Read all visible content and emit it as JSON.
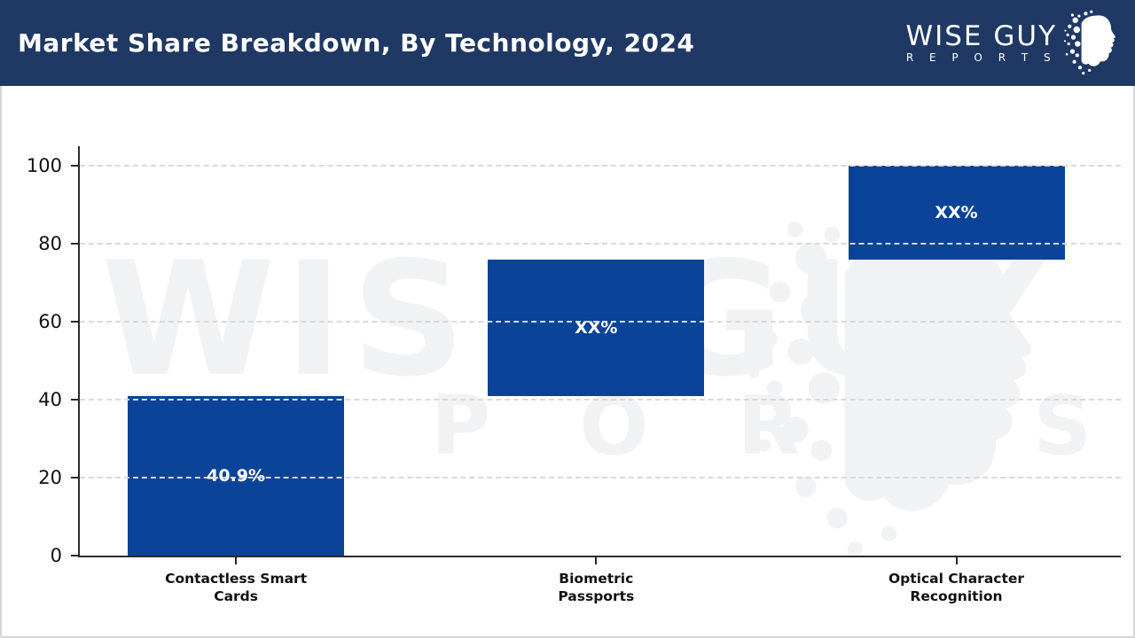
{
  "header": {
    "title": "Market Share Breakdown, By Technology, 2024",
    "logo": {
      "name": "WISE GUY",
      "sub": "R E P O R T S"
    }
  },
  "watermark": {
    "text_main": "WISE GUY",
    "text_sub": "R E P O R T S"
  },
  "chart_data": {
    "type": "bar",
    "subtype": "waterfall-stacked-segments",
    "title": "Market Share Breakdown, By Technology, 2024",
    "categories": [
      "Contactless Smart\nCards",
      "Biometric\nPassports",
      "Optical Character\nRecognition"
    ],
    "bars": [
      {
        "category": "Contactless Smart Cards",
        "start": 0,
        "end": 40.9,
        "label": "40.9%"
      },
      {
        "category": "Biometric Passports",
        "start": 40.9,
        "end": 75.9,
        "label": "XX%"
      },
      {
        "category": "Optical Character Recognition",
        "start": 75.9,
        "end": 100,
        "label": "XX%"
      }
    ],
    "ylim": [
      0,
      100
    ],
    "yticks": [
      0,
      20,
      40,
      60,
      80,
      100
    ],
    "xlabel": "",
    "ylabel": "",
    "grid": "horizontal-dashed",
    "legend": "none"
  },
  "colors": {
    "header_bg": "#1f3864",
    "bar": "#0a4398",
    "grid": "#d9d9d9",
    "axis": "#2a2a2a",
    "watermark": "#f1f2f4",
    "bar_label": "#ffffff",
    "title_text": "#ffffff"
  }
}
